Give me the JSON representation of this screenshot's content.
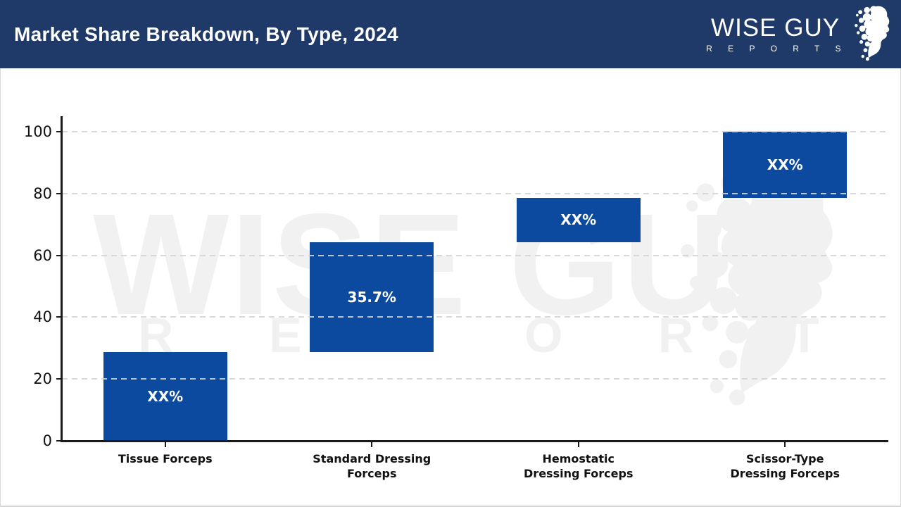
{
  "header": {
    "title": "Market Share Breakdown, By Type, 2024",
    "logo_line1": "WISE GUY",
    "logo_line2": "R E P O R T S"
  },
  "watermark": {
    "line1": "WISE GUY",
    "line2": "R E P O R T S"
  },
  "chart_data": {
    "type": "bar",
    "subtype": "waterfall",
    "title": "Market Share Breakdown, By Type, 2024",
    "categories": [
      "Tissue Forceps",
      "Standard Dressing\nForceps",
      "Hemostatic\nDressing Forceps",
      "Scissor-Type\nDressing Forceps"
    ],
    "bars": [
      {
        "category": "Tissue Forceps",
        "start": 0,
        "end": 28.6,
        "value_label": "XX%"
      },
      {
        "category": "Standard Dressing Forceps",
        "start": 28.6,
        "end": 64.3,
        "value_label": "35.7%"
      },
      {
        "category": "Hemostatic Dressing Forceps",
        "start": 64.3,
        "end": 78.6,
        "value_label": "XX%"
      },
      {
        "category": "Scissor-Type Dressing Forceps",
        "start": 78.6,
        "end": 100,
        "value_label": "XX%"
      }
    ],
    "values": [
      28.6,
      35.7,
      14.3,
      21.4
    ],
    "yticks": [
      0,
      20,
      40,
      60,
      80,
      100
    ],
    "ylim": [
      0,
      105
    ],
    "xlabel": "",
    "ylabel": "",
    "grid": "dashed-horizontal",
    "legend": "none",
    "bar_color": "#0b4a9e",
    "label_color": "#ffffff"
  },
  "colors": {
    "header_bg": "#1f3a68",
    "bar": "#0b4a9e",
    "grid": "#d4d4d4",
    "axis": "#1a1a1a",
    "watermark": "#f1f1f1"
  }
}
